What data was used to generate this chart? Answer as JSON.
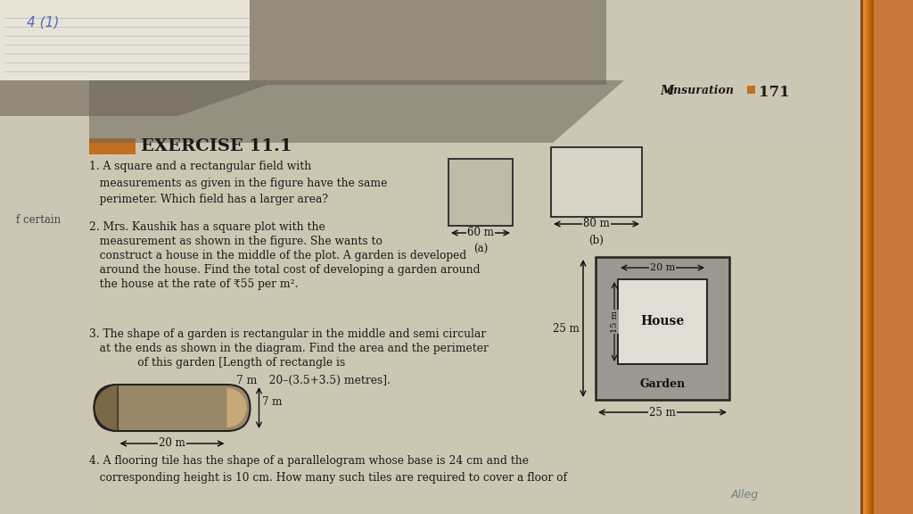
{
  "bg_color": "#c9c3b0",
  "page_color": "#ccc7b4",
  "shadow_color": "#8a8070",
  "top_shadow_color": "#a09888",
  "spine_color": "#c8783a",
  "spine_dark": "#8a4a1a",
  "orange_color": "#c07020",
  "text_color": "#1a1a1a",
  "dim_color": "#111111",
  "sq_a_fill": "#c0baa8",
  "rect_b_fill": "#d8d4c8",
  "garden_outer": "#9a9890",
  "garden_inner": "#e0ddd4",
  "stadium_fill": "#9a8868",
  "stadium_end_fill": "#7a6848",
  "header_title": "Mensuration",
  "header_num": "171",
  "exercise_label": "EXERCISE 11.1",
  "sq_label": "60 m",
  "rect_label": "80 m",
  "fig_a": "(a)",
  "fig_b": "(b)",
  "house_label": "House",
  "garden_label": "Garden",
  "dim_20m": "20 m",
  "dim_15m": "15 m",
  "dim_25m_left": "25 m",
  "dim_25m_bot": "25 m",
  "dim_7m": "7 m",
  "dim_20m_stad": "20 m",
  "p1": "1. A square and a rectangular field with\n   measurements as given in the figure have the same\n   perimeter. Which field has a larger area?",
  "p2_line1": "2. Mrs. Kaushik has a square plot with the",
  "p2_line2": "   measurement as shown in the figure. She wants to",
  "p2_line3": "   construct a house in the middle of the plot. A garden is developed",
  "p2_line4": "   around the house. Find the total cost of developing a garden around",
  "p2_line5": "   the house at the rate of ₹55 per m².",
  "p3_line1": "3. The shape of a garden is rectangular in the middle and semi circular",
  "p3_line2": "   at the ends as shown in the diagram. Find the area and the perimeter",
  "p3_line3": "              of this garden [Length of rectangle is",
  "p3_line4_a": "7 m",
  "p3_line4_b": "   20–(3.5+3.5) metres].",
  "p4": "4. A flooring tile has the shape of a parallelogram whose base is 24 cm and the\n   corresponding height is 10 cm. How many such tiles are required to cover a floor of",
  "margin_text": "f certain",
  "handwrite_top": "4 (1)",
  "handwrite_bot": "Alleg"
}
